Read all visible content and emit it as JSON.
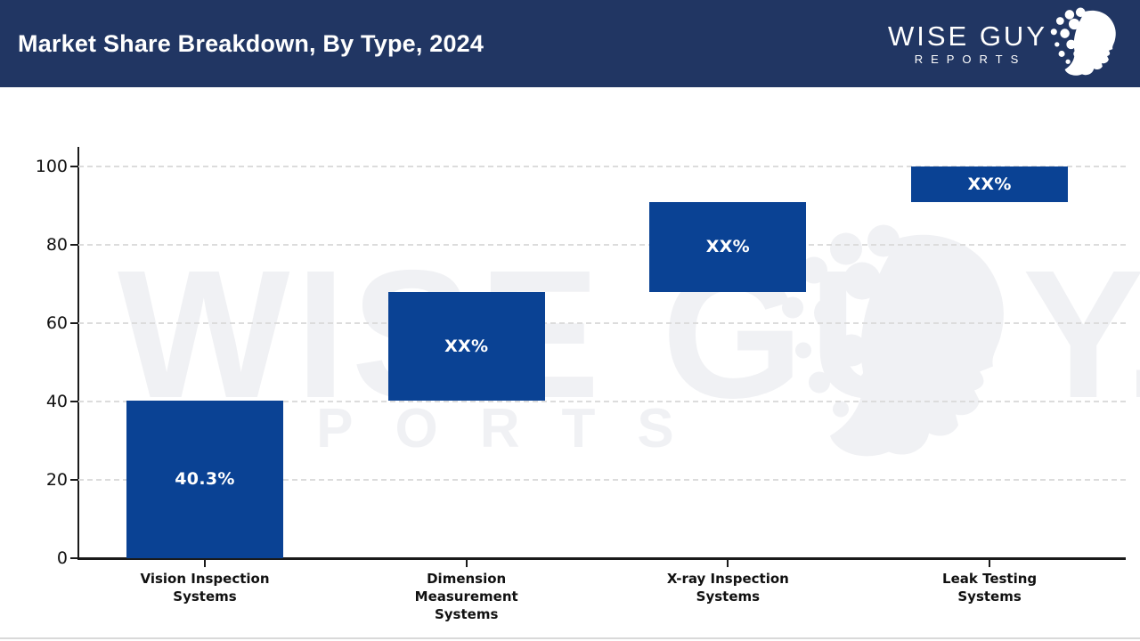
{
  "header": {
    "title": "Market Share Breakdown, By Type, 2024",
    "bg_color": "#213663",
    "logo": {
      "wordmark": "WISE GUY",
      "subtext": "REPORTS"
    }
  },
  "watermark": {
    "part1": "WISE GU",
    "part2": "Y.",
    "subtext": "REPORTS"
  },
  "chart_data": {
    "type": "bar",
    "subtype": "floating-waterfall",
    "title": "Market Share Breakdown, By Type, 2024",
    "categories": [
      "Vision Inspection Systems",
      "Dimension Measurement Systems",
      "X-ray Inspection Systems",
      "Leak Testing Systems"
    ],
    "series": [
      {
        "name": "Market share (%)",
        "segments": [
          {
            "category": "Vision Inspection Systems",
            "start": 0,
            "end": 40.3,
            "label": "40.3%"
          },
          {
            "category": "Dimension Measurement Systems",
            "start": 40.3,
            "end": 68,
            "label": "XX%"
          },
          {
            "category": "X-ray Inspection Systems",
            "start": 68,
            "end": 91,
            "label": "XX%"
          },
          {
            "category": "Leak Testing Systems",
            "start": 91,
            "end": 100,
            "label": "XX%"
          }
        ]
      }
    ],
    "ylim": [
      0,
      105
    ],
    "yticks": [
      0,
      20,
      40,
      60,
      80,
      100
    ],
    "grid": {
      "horizontal": true,
      "style": "dashed",
      "color": "#dcdcdc"
    },
    "bar_color": "#0a4294",
    "bar_label_color": "#ffffff",
    "axis_color": "#1a1a1a",
    "legend": "none"
  }
}
